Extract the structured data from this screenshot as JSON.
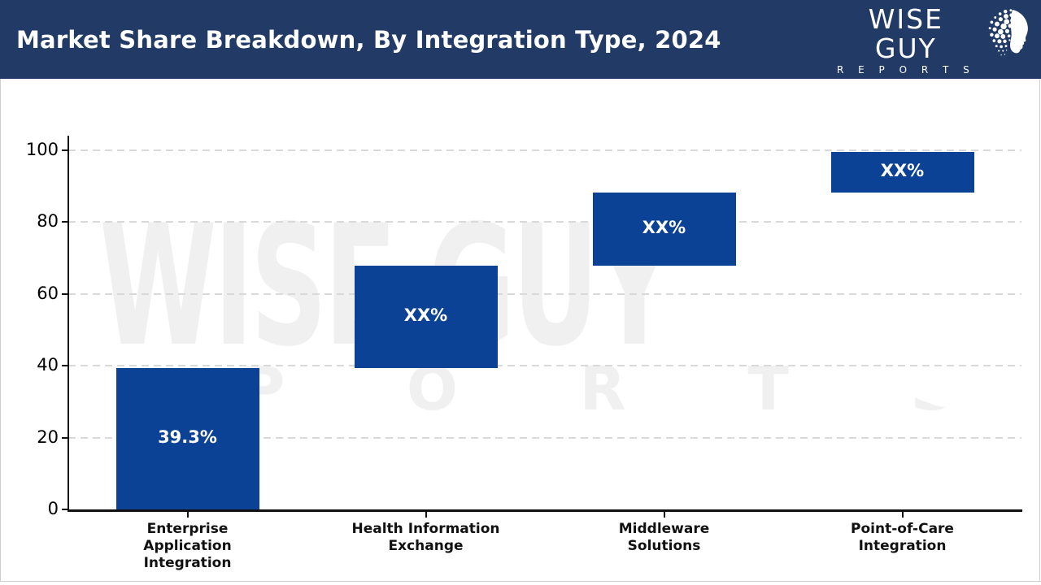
{
  "header": {
    "title": "Market Share Breakdown, By Integration Type, 2024",
    "logo": {
      "line1": "WISE GUY",
      "line2": "R E P O R T S",
      "face_icon": "dotted-head-profile"
    }
  },
  "watermark": {
    "line1": "WISE GUY",
    "line2": "P O R T S",
    "face_icon": "dotted-head-profile"
  },
  "chart_data": {
    "type": "bar",
    "subtype": "waterfall",
    "title": "Market Share Breakdown, By Integration Type, 2024",
    "categories": [
      "Enterprise Application Integration",
      "Health Information Exchange",
      "Middleware Solutions",
      "Point-of-Care Integration"
    ],
    "category_lines": [
      [
        "Enterprise",
        "Application",
        "Integration"
      ],
      [
        "Health Information",
        "Exchange"
      ],
      [
        "Middleware",
        "Solutions"
      ],
      [
        "Point-of-Care",
        "Integration"
      ]
    ],
    "segments": [
      {
        "start": 0,
        "end": 39.3,
        "value_label": "39.3%"
      },
      {
        "start": 39.3,
        "end": 67.8,
        "value_label": "XX%"
      },
      {
        "start": 67.8,
        "end": 88.3,
        "value_label": "XX%"
      },
      {
        "start": 88.3,
        "end": 99.6,
        "value_label": "XX%"
      }
    ],
    "xlabel": "",
    "ylabel": "",
    "yticks": [
      0,
      20,
      40,
      60,
      80,
      100
    ],
    "ylim": [
      0,
      104
    ],
    "grid": "horizontal-dashed",
    "legend": "none",
    "colors": {
      "bar": "#0b4296",
      "bar_label": "#ffffff",
      "axis": "#111111",
      "gridline": "#d9d9d9",
      "header_bg": "#213a66",
      "watermark": "#f0f0f0"
    }
  }
}
